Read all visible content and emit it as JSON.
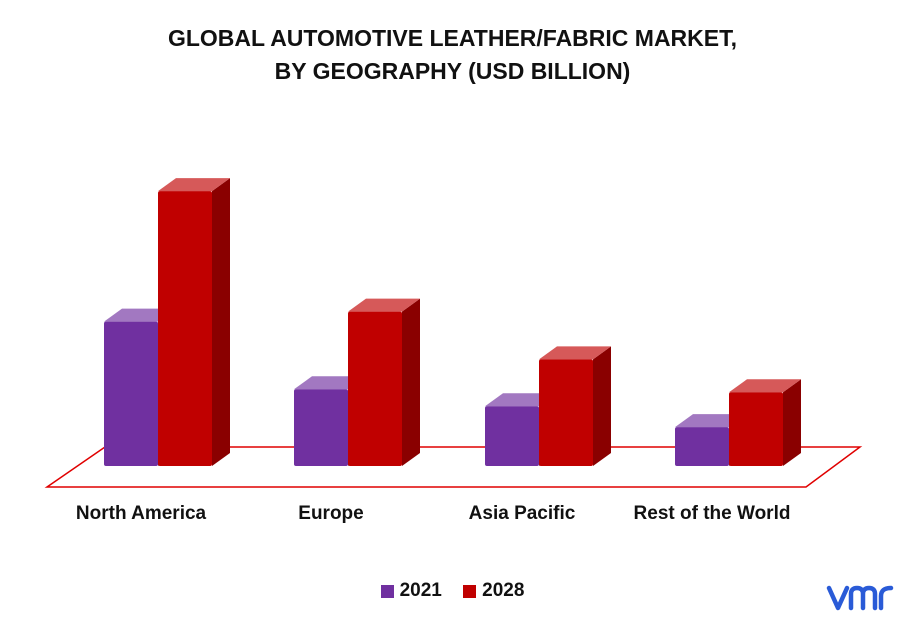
{
  "title_line1": "GLOBAL AUTOMOTIVE LEATHER/FABRIC MARKET,",
  "title_line2": "BY GEOGRAPHY (USD BILLION)",
  "colors": {
    "series_2021": "#7030a0",
    "series_2028": "#c00000",
    "floor": "#e00000"
  },
  "chart_data": {
    "type": "bar",
    "title": "GLOBAL AUTOMOTIVE LEATHER/FABRIC MARKET, BY GEOGRAPHY (USD BILLION)",
    "categories": [
      "North America",
      "Europe",
      "Asia Pacific",
      "Rest of the World"
    ],
    "series": [
      {
        "name": "2021",
        "values": [
          14.5,
          7.7,
          6.0,
          3.9
        ]
      },
      {
        "name": "2028",
        "values": [
          27.6,
          15.5,
          10.7,
          7.4
        ]
      }
    ],
    "ylim": [
      0,
      30
    ],
    "grid": false,
    "legend": "bottom",
    "xlabel": "",
    "ylabel": ""
  },
  "legend": {
    "series_2021": "2021",
    "series_2028": "2028"
  },
  "logo": {
    "text": "vmr"
  }
}
